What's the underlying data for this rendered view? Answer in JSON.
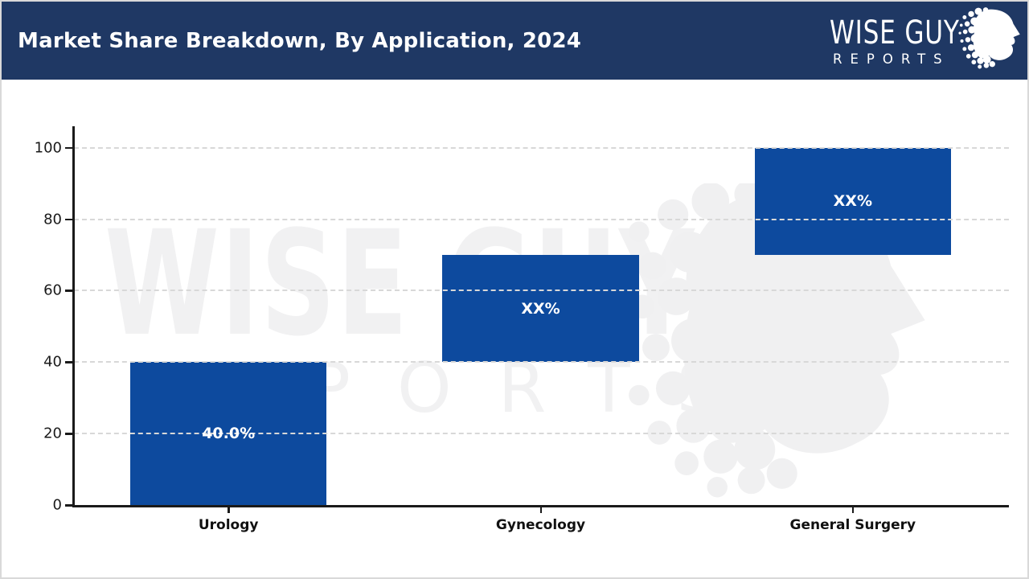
{
  "header": {
    "title": "Market Share Breakdown, By Application, 2024",
    "bg_color": "#1f3864",
    "logo": {
      "line1": "WISE GUY",
      "line2": "REPORTS"
    }
  },
  "watermark": {
    "line1": "WISE GUY",
    "line2": "REPORTS"
  },
  "chart_data": {
    "type": "bar",
    "subtype": "floating-segment waterfall bars",
    "title": "Market Share Breakdown, By Application, 2024",
    "categories": [
      "Urology",
      "Gynecology",
      "General Surgery"
    ],
    "series": [
      {
        "name": "Market share range (%)",
        "ranges": [
          [
            0,
            40
          ],
          [
            40,
            70
          ],
          [
            70,
            100
          ]
        ],
        "bar_labels": [
          "40.0%",
          "XX%",
          "XX%"
        ]
      }
    ],
    "xlabel": "",
    "ylabel": "",
    "yticks": [
      0,
      20,
      40,
      60,
      80,
      100
    ],
    "ylim": [
      0,
      106
    ],
    "grid": "horizontal dashed gridlines drawn over bars",
    "legend": "none",
    "bar_color": "#0d4a9e",
    "bar_label_color": "#ffffff",
    "axis_color": "#1a1a1a",
    "gridline_color": "#d8d8d8",
    "watermark_color": "#f1f1f2"
  }
}
